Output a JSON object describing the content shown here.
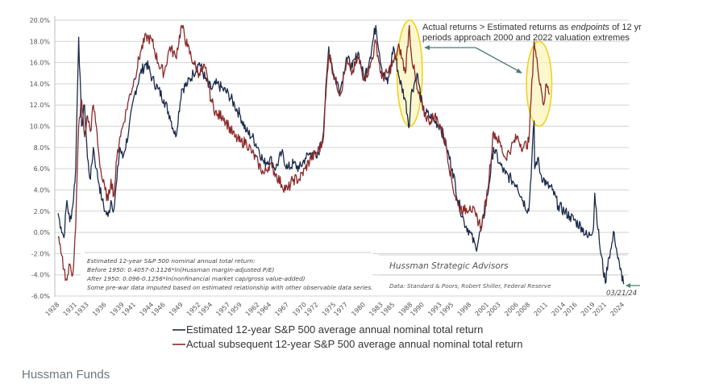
{
  "chart_data": {
    "type": "line",
    "title": "",
    "xlabel": "",
    "ylabel": "",
    "ylim": [
      -6.0,
      20.0
    ],
    "xlim": [
      1928,
      2024.3
    ],
    "y_ticks": [
      "-6.0%",
      "-4.0%",
      "-2.0%",
      "0.0%",
      "2.0%",
      "4.0%",
      "6.0%",
      "8.0%",
      "10.0%",
      "12.0%",
      "14.0%",
      "16.0%",
      "18.0%",
      "20.0%"
    ],
    "y_tick_values": [
      -6,
      -4,
      -2,
      0,
      2,
      4,
      6,
      8,
      10,
      12,
      14,
      16,
      18,
      20
    ],
    "x_ticks": [
      "1928",
      "1931",
      "1933",
      "1936",
      "1939",
      "1941",
      "1944",
      "1946",
      "1949",
      "1952",
      "1954",
      "1957",
      "1959",
      "1962",
      "1964",
      "1967",
      "1970",
      "1972",
      "1975",
      "1977",
      "1980",
      "1983",
      "1985",
      "1988",
      "1990",
      "1993",
      "1995",
      "1998",
      "2001",
      "2003",
      "2006",
      "2008",
      "2011",
      "2014",
      "2016",
      "2019",
      "2021",
      "2024"
    ],
    "grid": "horizontal",
    "legend_position": "bottom-center",
    "series": [
      {
        "name": "Estimated 12-year S&P 500 average annual nominal total return",
        "color": "#1b2a4a",
        "x": [
          1928.0,
          1928.5,
          1929.0,
          1929.5,
          1930.0,
          1930.5,
          1931.0,
          1931.5,
          1932.0,
          1932.5,
          1933.0,
          1933.5,
          1934.0,
          1934.5,
          1935.0,
          1935.5,
          1936.0,
          1936.5,
          1937.0,
          1937.5,
          1938.0,
          1938.5,
          1939.0,
          1940.0,
          1941.0,
          1942.0,
          1943.0,
          1944.0,
          1945.0,
          1946.0,
          1947.0,
          1948.0,
          1949.0,
          1950.0,
          1951.0,
          1952.0,
          1953.0,
          1954.0,
          1955.0,
          1956.0,
          1957.0,
          1958.0,
          1959.0,
          1960.0,
          1961.0,
          1962.0,
          1963.0,
          1964.0,
          1965.0,
          1966.0,
          1967.0,
          1968.0,
          1969.0,
          1970.0,
          1971.0,
          1972.0,
          1973.0,
          1974.0,
          1975.0,
          1976.0,
          1977.0,
          1978.0,
          1979.0,
          1980.0,
          1981.0,
          1982.0,
          1983.0,
          1984.0,
          1985.0,
          1986.0,
          1987.0,
          1987.7,
          1988.0,
          1989.0,
          1990.0,
          1991.0,
          1992.0,
          1993.0,
          1994.0,
          1995.0,
          1996.0,
          1997.0,
          1998.0,
          1999.0,
          2000.0,
          2001.0,
          2002.0,
          2003.0,
          2004.0,
          2005.0,
          2006.0,
          2007.0,
          2008.0,
          2008.9,
          2009.0,
          2009.5,
          2010.0,
          2011.0,
          2012.0,
          2013.0,
          2014.0,
          2015.0,
          2016.0,
          2017.0,
          2018.0,
          2019.0,
          2019.2,
          2020.0,
          2021.0,
          2021.5,
          2022.0,
          2022.5,
          2023.0,
          2023.5,
          2024.2
        ],
        "values": [
          1.8,
          0.5,
          -0.5,
          3.0,
          1.0,
          2.5,
          6.0,
          18.4,
          10.0,
          12.0,
          7.0,
          5.0,
          8.0,
          6.0,
          4.5,
          3.0,
          2.0,
          1.5,
          3.0,
          2.2,
          5.0,
          8.0,
          7.0,
          9.5,
          13.0,
          15.0,
          16.0,
          14.5,
          13.5,
          12.5,
          11.0,
          9.0,
          13.5,
          14.0,
          15.0,
          16.0,
          14.5,
          13.5,
          14.0,
          13.5,
          13.0,
          12.0,
          11.0,
          9.5,
          9.0,
          8.0,
          6.5,
          7.0,
          6.0,
          7.5,
          6.0,
          6.5,
          6.0,
          7.0,
          7.5,
          7.0,
          9.0,
          17.5,
          14.5,
          13.5,
          16.5,
          15.5,
          17.0,
          14.5,
          16.5,
          19.5,
          15.5,
          14.0,
          17.5,
          14.5,
          12.5,
          10.0,
          13.0,
          15.0,
          11.5,
          11.0,
          10.5,
          10.0,
          8.0,
          6.0,
          3.0,
          1.0,
          0.0,
          -1.5,
          0.5,
          3.5,
          8.0,
          6.5,
          5.5,
          5.0,
          4.5,
          3.0,
          2.0,
          10.5,
          6.0,
          7.0,
          5.5,
          4.5,
          4.0,
          2.5,
          2.0,
          1.5,
          1.0,
          0.5,
          -0.5,
          0.5,
          3.7,
          -1.0,
          -4.8,
          -2.5,
          -1.5,
          0.0,
          -2.0,
          -3.5,
          -4.8
        ]
      },
      {
        "name": "Actual subsequent 12-year S&P 500 average annual nominal total return",
        "color": "#8b2a2a",
        "x": [
          1928.0,
          1928.5,
          1929.0,
          1929.5,
          1930.0,
          1930.5,
          1931.0,
          1931.5,
          1932.0,
          1932.5,
          1933.0,
          1933.5,
          1934.0,
          1934.5,
          1935.0,
          1935.5,
          1936.0,
          1936.5,
          1937.0,
          1937.5,
          1938.0,
          1938.5,
          1939.0,
          1940.0,
          1941.0,
          1942.0,
          1943.0,
          1944.0,
          1945.0,
          1946.0,
          1947.0,
          1948.0,
          1949.0,
          1950.0,
          1951.0,
          1952.0,
          1953.0,
          1954.0,
          1955.0,
          1956.0,
          1957.0,
          1958.0,
          1959.0,
          1960.0,
          1961.0,
          1962.0,
          1963.0,
          1964.0,
          1965.0,
          1966.0,
          1967.0,
          1968.0,
          1969.0,
          1970.0,
          1971.0,
          1972.0,
          1973.0,
          1974.0,
          1975.0,
          1976.0,
          1977.0,
          1978.0,
          1979.0,
          1980.0,
          1981.0,
          1982.0,
          1983.0,
          1984.0,
          1985.0,
          1986.0,
          1987.0,
          1987.7,
          1988.0,
          1989.0,
          1990.0,
          1991.0,
          1992.0,
          1993.0,
          1994.0,
          1995.0,
          1996.0,
          1997.0,
          1998.0,
          1999.0,
          2000.0,
          2001.0,
          2002.0,
          2003.0,
          2004.0,
          2005.0,
          2006.0,
          2007.0,
          2008.0,
          2008.9,
          2009.5,
          2010.0,
          2010.5,
          2011.0,
          2011.5
        ],
        "values": [
          -0.5,
          -2.0,
          -3.5,
          -4.5,
          -3.0,
          -4.0,
          0.5,
          10.0,
          12.5,
          9.0,
          11.0,
          9.5,
          12.0,
          10.0,
          7.0,
          5.0,
          4.0,
          3.0,
          5.0,
          3.5,
          7.0,
          9.0,
          10.0,
          12.5,
          14.5,
          17.0,
          18.5,
          18.0,
          16.0,
          15.0,
          17.5,
          16.5,
          19.5,
          17.5,
          16.0,
          15.0,
          15.5,
          12.5,
          11.0,
          11.0,
          10.0,
          9.0,
          8.5,
          8.5,
          7.5,
          6.5,
          5.5,
          6.5,
          5.5,
          4.5,
          4.0,
          5.0,
          5.0,
          6.0,
          7.0,
          7.5,
          8.5,
          17.0,
          14.5,
          13.0,
          16.0,
          15.0,
          16.5,
          14.5,
          15.5,
          18.0,
          14.5,
          15.0,
          16.0,
          17.5,
          15.0,
          19.5,
          17.0,
          13.5,
          11.5,
          10.5,
          11.0,
          10.0,
          8.0,
          4.5,
          2.5,
          2.0,
          2.5,
          1.5,
          0.5,
          4.0,
          9.5,
          8.5,
          7.0,
          8.0,
          9.0,
          8.0,
          8.5,
          18.0,
          15.5,
          14.0,
          12.0,
          14.0,
          13.0
        ]
      }
    ],
    "annotations": [
      {
        "type": "text",
        "lines": [
          "Actual returns > Estimated returns as endpoints of 12 yr",
          "periods approach 2000 and 2022 valuation extremes"
        ],
        "italic_word": "endpoints"
      },
      {
        "type": "highlight-ellipse",
        "x_range": [
          1985.6,
          1989.9
        ],
        "y_range": [
          10.0,
          20.0
        ],
        "color": "#f2d024"
      },
      {
        "type": "highlight-ellipse",
        "x_range": [
          2007.6,
          2011.9
        ],
        "y_range": [
          10.0,
          18.0
        ],
        "color": "#f2d024"
      },
      {
        "type": "arrow",
        "direction": "left",
        "label": "03/21/24"
      }
    ],
    "notes": [
      "Estimated 12-year S&P 500 nominal annual total return:",
      "Before 1950: 0.4057-0.1126*ln(Hussman  margin-adjusted P/E)",
      "After 1950: 0.096-0.1256*ln(nonfinancial  market cap/gross value-added)",
      "Some pre-war data imputed based on estimated relationship with other observable data series."
    ],
    "brand": "Hussman Strategic Advisors",
    "data_source": "Data: Standard & Poors, Robert Shiller, Federal Reserve",
    "date_marker": "03/21/24"
  },
  "caption": "Hussman Funds"
}
